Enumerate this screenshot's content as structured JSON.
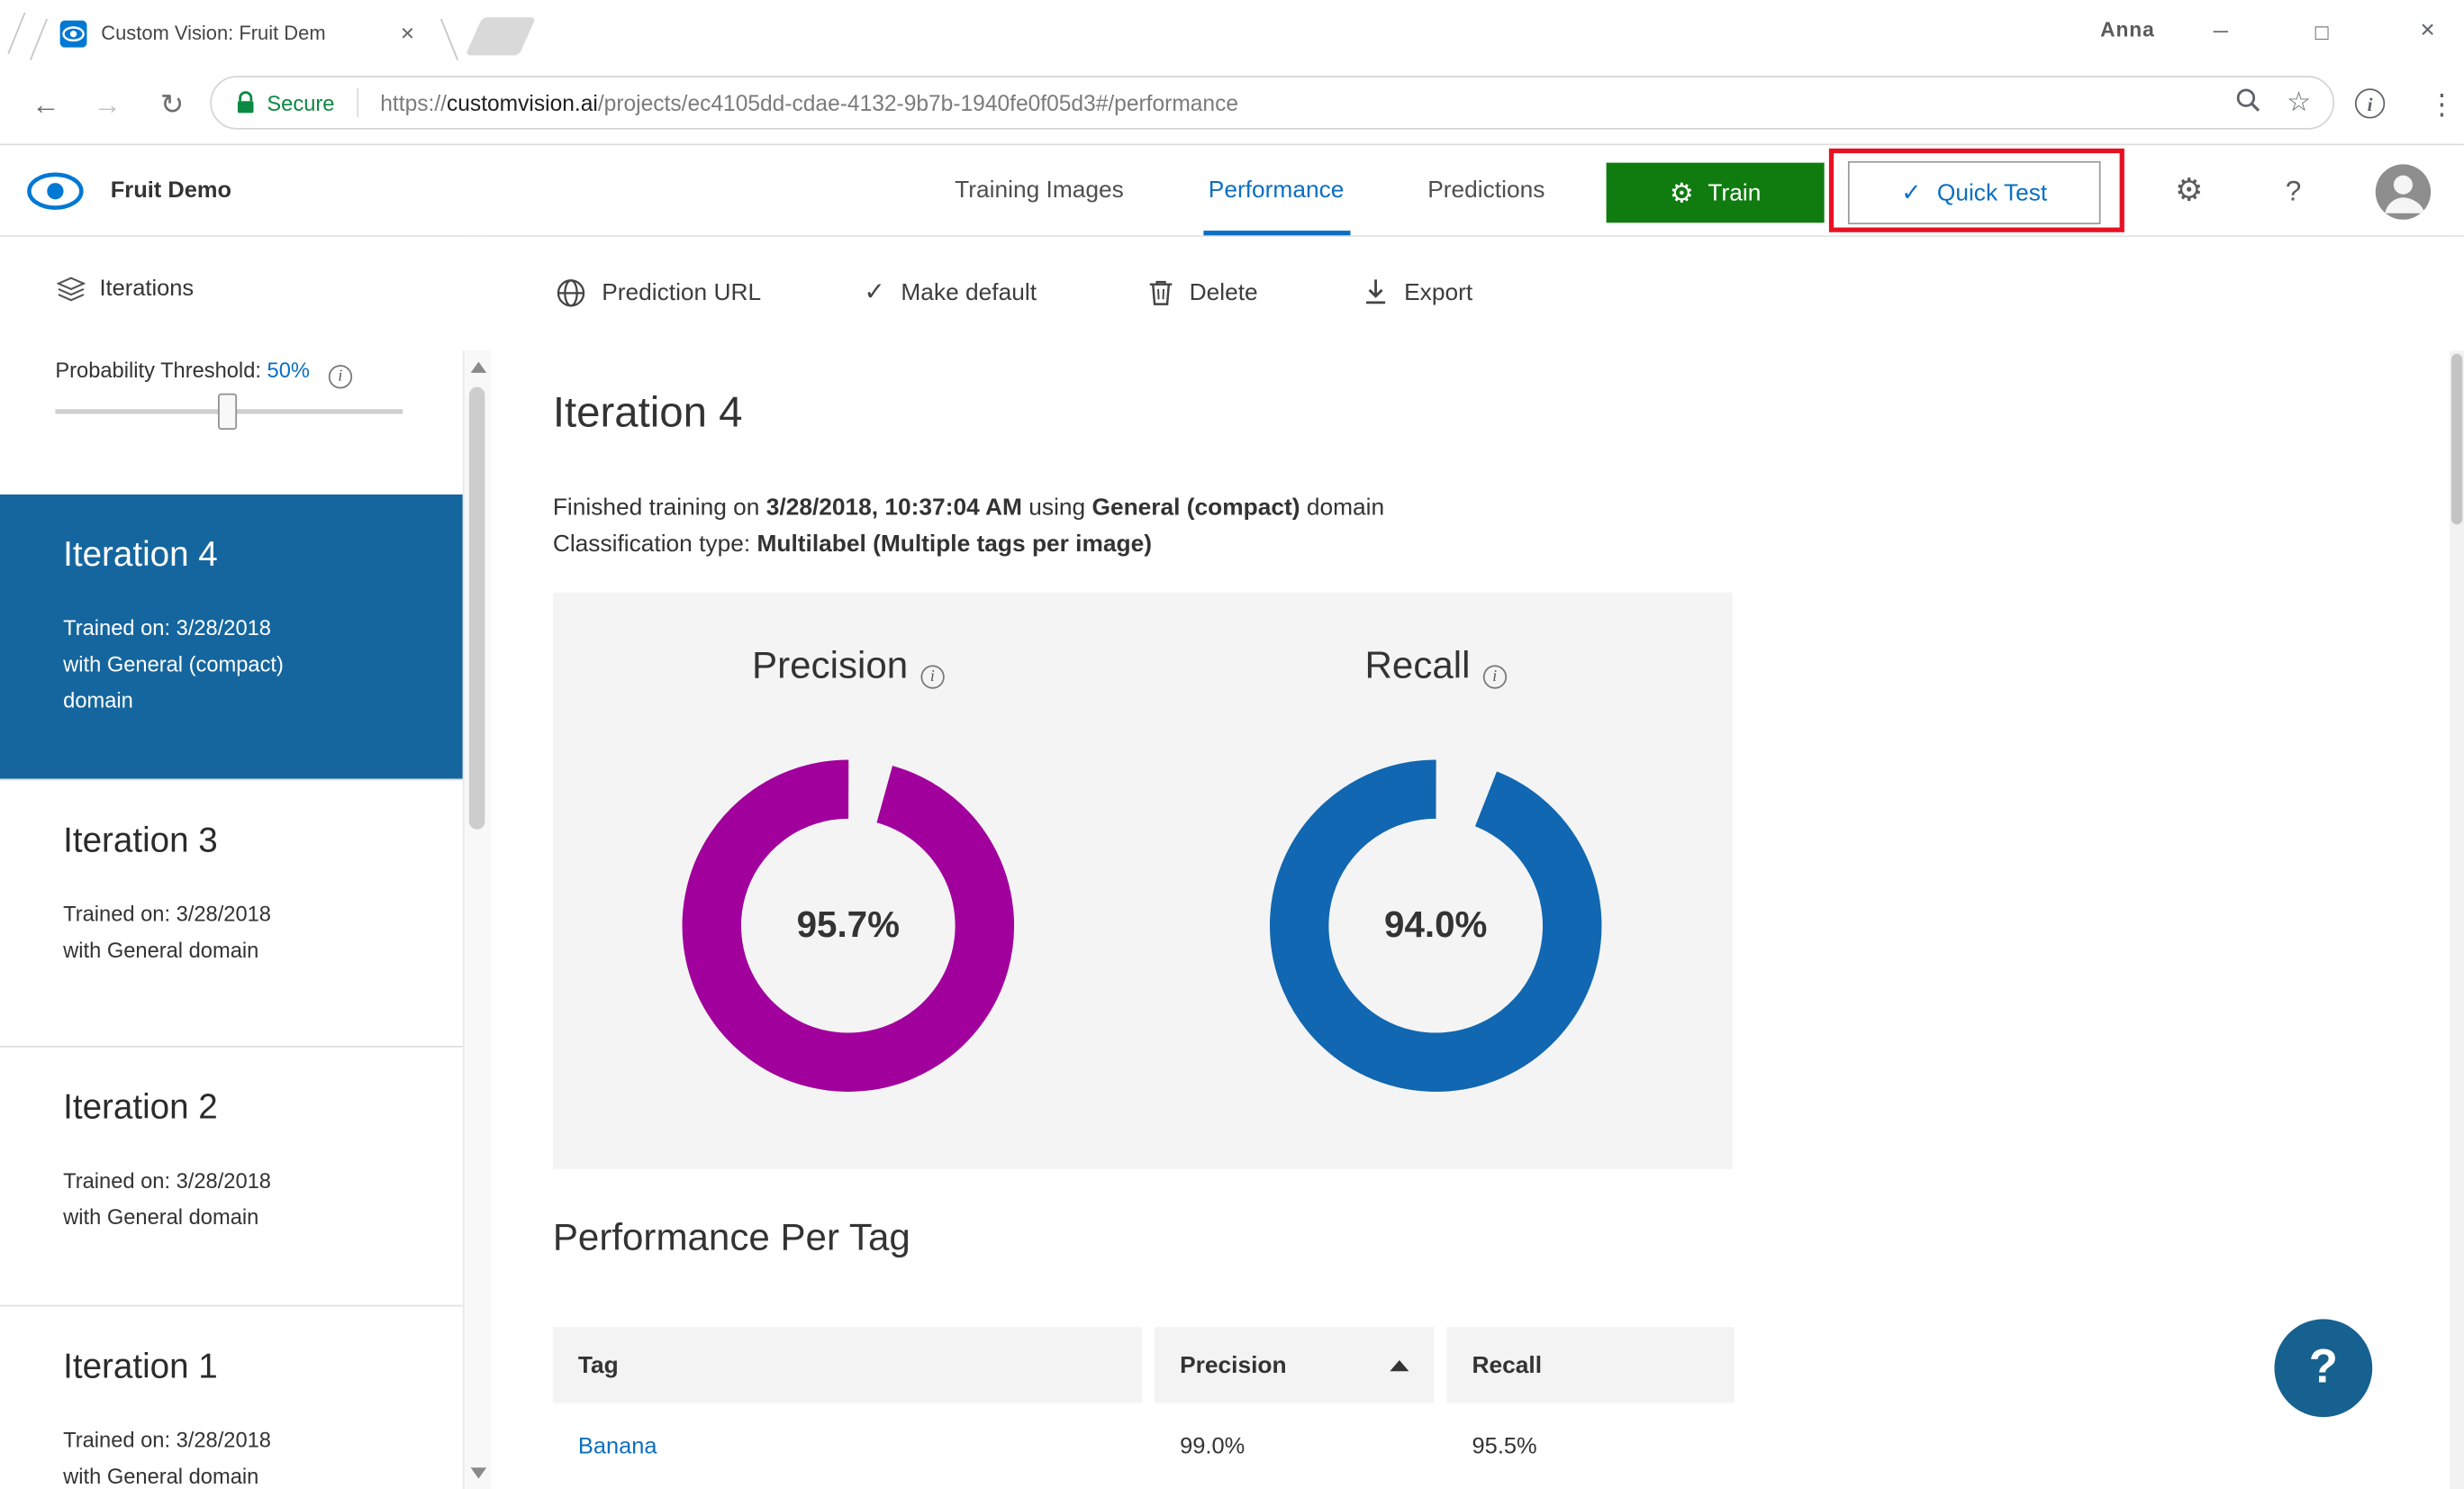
{
  "browser": {
    "tab_title": "Custom Vision: Fruit Dem",
    "profile_name": "Anna",
    "address": {
      "security_label": "Secure",
      "scheme": "https://",
      "host": "customvision.ai",
      "path": "/projects/ec4105dd-cdae-4132-9b7b-1940fe0f05d3#/performance"
    }
  },
  "icons": {
    "close": "×",
    "minimize": "─",
    "maximize": "□",
    "back": "←",
    "forward": "→",
    "reload": "↻",
    "star": "☆",
    "menu": "⋮",
    "check": "✓",
    "gears": "⚙",
    "settings": "⚙",
    "question": "?",
    "info": "i"
  },
  "header": {
    "project_name": "Fruit Demo",
    "nav_tabs": [
      {
        "label": "Training Images",
        "active": false
      },
      {
        "label": "Performance",
        "active": true
      },
      {
        "label": "Predictions",
        "active": false
      }
    ],
    "train_button_label": "Train",
    "quick_test_label": "Quick Test"
  },
  "sidebar": {
    "title": "Iterations",
    "threshold_label": "Probability Threshold:",
    "threshold_value": "50%",
    "iterations": [
      {
        "name": "Iteration 4",
        "lines": [
          "Trained on: 3/28/2018",
          "with General (compact)",
          "domain"
        ],
        "selected": true
      },
      {
        "name": "Iteration 3",
        "lines": [
          "Trained on: 3/28/2018",
          "with General domain"
        ],
        "selected": false
      },
      {
        "name": "Iteration 2",
        "lines": [
          "Trained on: 3/28/2018",
          "with General domain"
        ],
        "selected": false
      },
      {
        "name": "Iteration 1",
        "lines": [
          "Trained on: 3/28/2018",
          "with General domain"
        ],
        "selected": false
      }
    ]
  },
  "actionbar": {
    "items": [
      {
        "label": "Prediction URL",
        "icon": "globe-icon"
      },
      {
        "label": "Make default",
        "icon": "check-icon"
      },
      {
        "label": "Delete",
        "icon": "trash-icon"
      },
      {
        "label": "Export",
        "icon": "export-icon"
      }
    ]
  },
  "main": {
    "iteration_title": "Iteration 4",
    "finished_line": {
      "prefix": "Finished training on ",
      "datetime": "3/28/2018, 10:37:04 AM",
      "middle": " using ",
      "domain": "General (compact)",
      "suffix": " domain"
    },
    "classification_line": {
      "prefix": "Classification type: ",
      "value": "Multilabel (Multiple tags per image)"
    }
  },
  "chart_data": [
    {
      "type": "pie",
      "subtype": "donut",
      "title": "Precision",
      "value": 95.7,
      "label": "95.7%",
      "color": "#a1009c"
    },
    {
      "type": "pie",
      "subtype": "donut",
      "title": "Recall",
      "value": 94.0,
      "label": "94.0%",
      "color": "#1167b1"
    },
    {
      "type": "table",
      "title": "Performance Per Tag",
      "columns": [
        "Tag",
        "Precision",
        "Recall"
      ],
      "sorted_by": "Precision",
      "sort_direction": "asc",
      "rows": [
        [
          "Banana",
          "99.0%",
          "95.5%"
        ]
      ]
    }
  ],
  "colors": {
    "accent_blue": "#0a6fc2",
    "train_green": "#107c10",
    "selected_iteration_bg": "#15669e",
    "annotation_red": "#e81123",
    "secure_green": "#0c8a43",
    "link_blue": "#0a6fc2",
    "precision_donut": "#a1009c",
    "recall_donut": "#1167b1"
  },
  "fab": {
    "label": "?"
  }
}
